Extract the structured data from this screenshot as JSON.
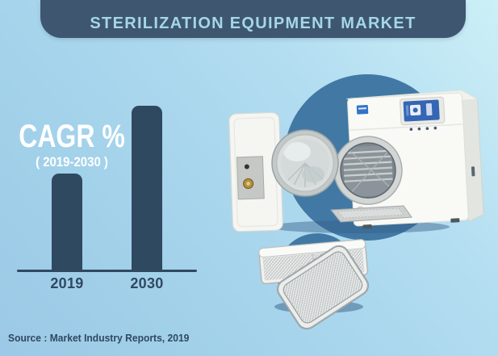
{
  "header": {
    "title": "STERILIZATION EQUIPMENT MARKET"
  },
  "cagr_label": {
    "title": "CAGR %",
    "range": "( 2019-2030 )"
  },
  "chart_data": {
    "type": "bar",
    "title": "CAGR % ( 2019-2030 )",
    "categories": [
      "2019",
      "2030"
    ],
    "values": [
      120,
      204
    ],
    "value_note": "no numeric axis or data labels shown; values are relative bar heights in pixels",
    "xlabel": "",
    "ylabel": "",
    "grid": false,
    "legend": false,
    "bar_color": "#2f4961",
    "baseline_color": "#2f4961"
  },
  "footer": {
    "source_text": "Source : Market Industry Reports, 2019"
  },
  "illustration": {
    "description": "benchtop autoclave sterilizer with open round door and two wire mesh baskets, on blue circle backdrops",
    "backdrop_color": "#4179a4"
  },
  "colors": {
    "banner_bg": "#3e5670",
    "banner_text": "#a5d6ea",
    "background_light": "#cdf0f7",
    "background_dark": "#9cc9e6",
    "dark_navy": "#2f4961",
    "white_text": "#ffffff"
  }
}
